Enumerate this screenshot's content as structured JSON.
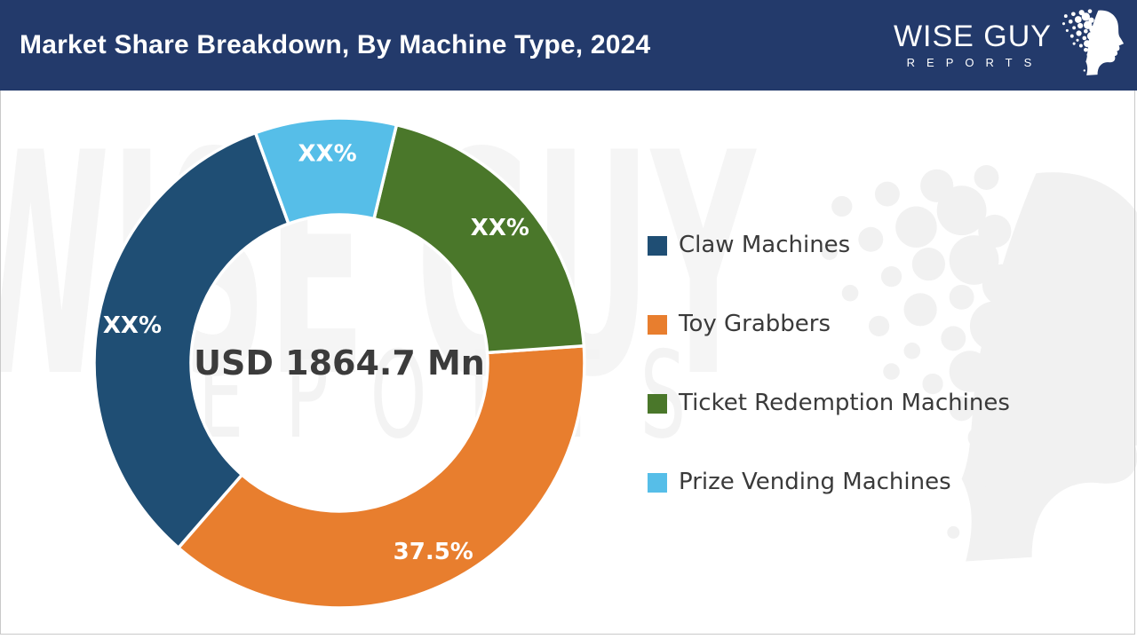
{
  "page": {
    "background_color": "#ffffff",
    "frame_border_color": "#c9c9c9"
  },
  "header": {
    "title": "Market Share Breakdown, By Machine Type, 2024",
    "background_color": "#233a6b",
    "text_color": "#ffffff",
    "logo": {
      "name": "WISE GUY",
      "subtitle": "REPORTS",
      "icon": "dotted-head-profile"
    }
  },
  "watermark": {
    "line1": "WISE GUY",
    "line2": "REPORTS",
    "color": "#f4f4f4"
  },
  "chart_data": {
    "type": "pie",
    "subtype": "donut",
    "title": "Market Share Breakdown, By Machine Type, 2024",
    "center_label": "USD 1864.7 Mn",
    "legend_position": "right",
    "values_unit": "% market share",
    "segments": [
      {
        "label": "Claw Machines",
        "display_value": "XX%",
        "share_pct_est": 33.1,
        "angle_start_deg": 221,
        "angle_end_deg": 340,
        "color": "#1F4E74"
      },
      {
        "label": "Toy Grabbers",
        "display_value": "37.5%",
        "share_pct_est": 37.5,
        "angle_start_deg": 86,
        "angle_end_deg": 221,
        "color": "#E87E2E"
      },
      {
        "label": "Ticket Redemption Machines",
        "display_value": "XX%",
        "share_pct_est": 20.1,
        "angle_start_deg": 13.5,
        "angle_end_deg": 86,
        "color": "#4A772A"
      },
      {
        "label": "Prize Vending Machines",
        "display_value": "XX%",
        "share_pct_est": 9.3,
        "angle_start_deg": 340,
        "angle_end_deg": 373.5,
        "color": "#56BEE8"
      }
    ]
  }
}
